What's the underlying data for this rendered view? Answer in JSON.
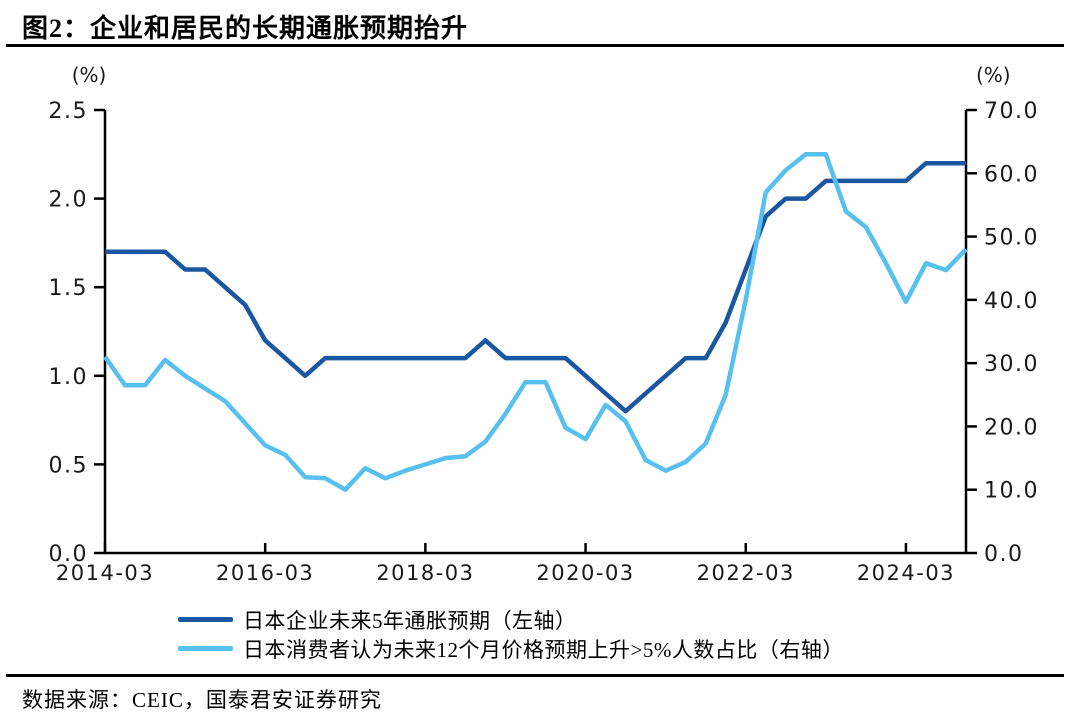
{
  "figure": {
    "title": "图2：企业和居民的长期通胀预期抬升",
    "source": "数据来源：CEIC，国泰君安证券研究"
  },
  "chart_data": {
    "type": "line",
    "title": "图2：企业和居民的长期通胀预期抬升",
    "grid": false,
    "legend_position": "bottom",
    "left_axis": {
      "unit_label": "(%)",
      "tick_labels": [
        "2.5",
        "2.0",
        "1.5",
        "1.0",
        "0.5",
        "0.0"
      ],
      "min": 0.0,
      "max": 2.5
    },
    "right_axis": {
      "unit_label": "(%)",
      "tick_labels": [
        "70.0",
        "60.0",
        "50.0",
        "40.0",
        "30.0",
        "20.0",
        "10.0",
        "0.0"
      ],
      "min": 0.0,
      "max": 70.0
    },
    "x_axis": {
      "tick_labels": [
        "2014-03",
        "2016-03",
        "2018-03",
        "2020-03",
        "2022-03",
        "2024-03"
      ],
      "tick_every_n_points": 8
    },
    "x": [
      "2014-03",
      "2014-06",
      "2014-09",
      "2014-12",
      "2015-03",
      "2015-06",
      "2015-09",
      "2015-12",
      "2016-03",
      "2016-06",
      "2016-09",
      "2016-12",
      "2017-03",
      "2017-06",
      "2017-09",
      "2017-12",
      "2018-03",
      "2018-06",
      "2018-09",
      "2018-12",
      "2019-03",
      "2019-06",
      "2019-09",
      "2019-12",
      "2020-03",
      "2020-06",
      "2020-09",
      "2020-12",
      "2021-03",
      "2021-06",
      "2021-09",
      "2021-12",
      "2022-03",
      "2022-06",
      "2022-09",
      "2022-12",
      "2023-03",
      "2023-06",
      "2023-09",
      "2023-12",
      "2024-03",
      "2024-06",
      "2024-09",
      "2024-12"
    ],
    "series": [
      {
        "name": "日本企业未来5年通胀预期（左轴）",
        "axis": "left",
        "color": "#1b56a1",
        "values": [
          1.7,
          1.7,
          1.7,
          1.7,
          1.6,
          1.6,
          1.5,
          1.4,
          1.2,
          1.1,
          1.0,
          1.1,
          1.1,
          1.1,
          1.1,
          1.1,
          1.1,
          1.1,
          1.1,
          1.2,
          1.1,
          1.1,
          1.1,
          1.1,
          1.0,
          0.9,
          0.8,
          0.9,
          1.0,
          1.1,
          1.1,
          1.3,
          1.6,
          1.9,
          2.0,
          2.0,
          2.1,
          2.1,
          2.1,
          2.1,
          2.1,
          2.2,
          2.2,
          2.2
        ]
      },
      {
        "name": "日本消费者认为未来12个月价格预期上升>5%人数占比（右轴）",
        "axis": "right",
        "color": "#57c0ee",
        "values": [
          31,
          26.5,
          26.5,
          30.5,
          28,
          26,
          24,
          20.5,
          17,
          15.5,
          12,
          11.8,
          10,
          13.4,
          11.8,
          13,
          14,
          15,
          15.3,
          17.6,
          22,
          27,
          27,
          19.8,
          18,
          23.4,
          20.8,
          14.7,
          13,
          14.4,
          17.3,
          25,
          40,
          57,
          60.5,
          63,
          63,
          54,
          51.5,
          45.8,
          39.7,
          45.8,
          44.7,
          48
        ]
      }
    ]
  }
}
